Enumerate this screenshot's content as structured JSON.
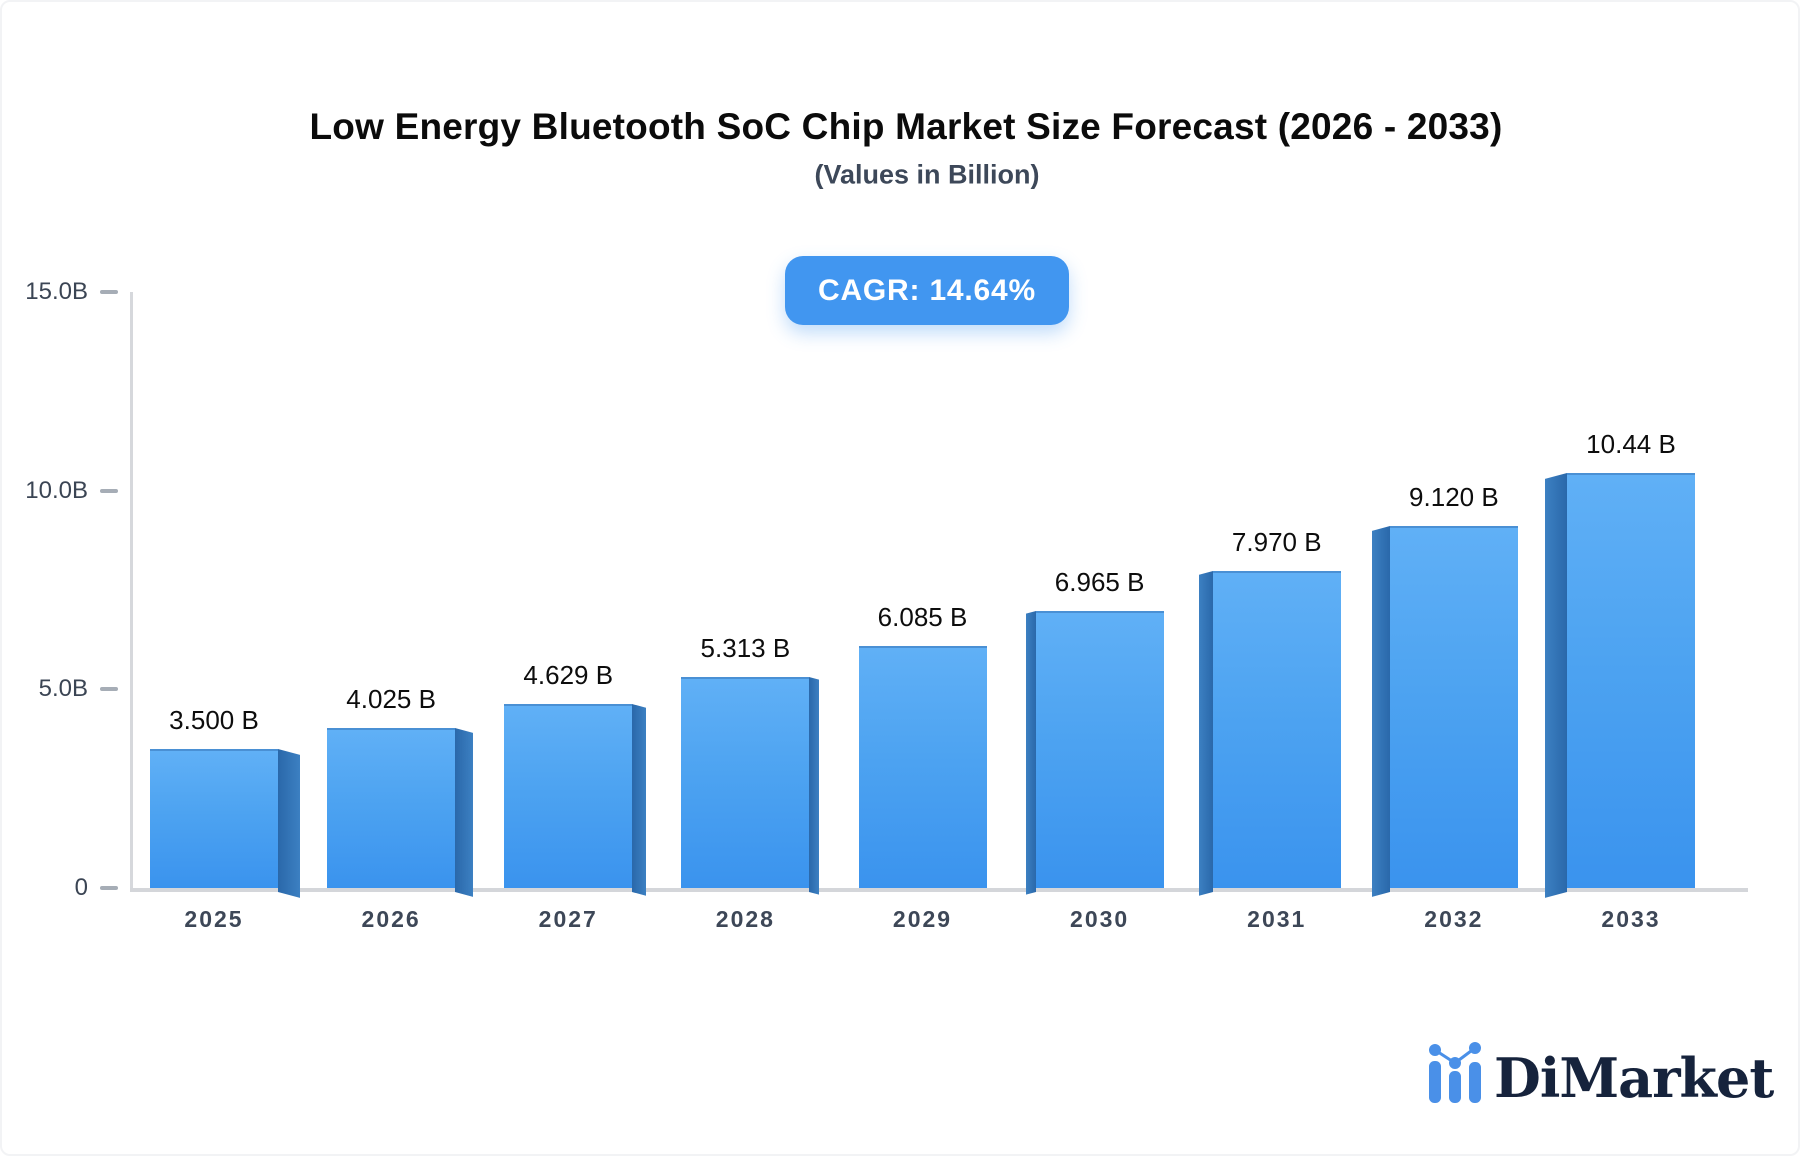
{
  "header": {
    "title": "Low Energy Bluetooth SoC Chip Market Size Forecast (2026 - 2033)",
    "subtitle": "(Values in Billion)",
    "badge_label": "CAGR: 14.64%"
  },
  "brand": {
    "name": "DiMarket",
    "icon": "bar-chart-logo-icon",
    "icon_color": "#4a90e8",
    "text_color": "#16233c"
  },
  "chart_data": {
    "type": "bar",
    "title": "Low Energy Bluetooth SoC Chip Market Size Forecast (2026 - 2033)",
    "subtitle": "(Values in Billion)",
    "annotation": "CAGR: 14.64%",
    "categories": [
      "2025",
      "2026",
      "2027",
      "2028",
      "2029",
      "2030",
      "2031",
      "2032",
      "2033"
    ],
    "values": [
      3.5,
      4.025,
      4.629,
      5.313,
      6.085,
      6.965,
      7.97,
      9.12,
      10.44
    ],
    "bar_labels": [
      "3.500 B",
      "4.025 B",
      "4.629 B",
      "5.313 B",
      "6.085 B",
      "6.965 B",
      "7.970 B",
      "9.120 B",
      "10.44 B"
    ],
    "xlabel": "",
    "ylabel": "",
    "y_tick_labels": [
      "15.0B",
      "10.0B",
      "5.0B",
      "0"
    ],
    "y_tick_values": [
      15,
      10,
      5,
      0
    ],
    "ylim": [
      0,
      15
    ],
    "grid": false,
    "legend": "none",
    "style": "pseudo-3d bars, center vanishing point",
    "colors": {
      "bar_face_top": "#60b0f6",
      "bar_face_bottom": "#3a93ee",
      "bar_side_dark": "#2a68aa",
      "bar_side_light": "#3c80c2",
      "accent_badge": "#4196f0",
      "axis_line": "#d5d7db",
      "tick_text": "#3d4757",
      "value_text": "#0d0d0d"
    }
  }
}
